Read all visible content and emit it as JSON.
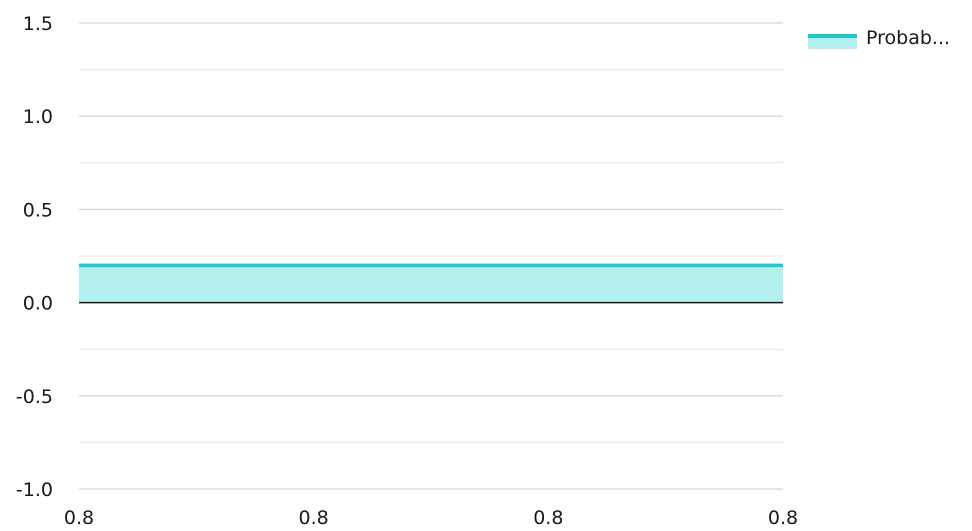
{
  "chart_data": {
    "type": "area",
    "title": "",
    "xlabel": "",
    "ylabel": "",
    "x_tick_labels": [
      "0.8",
      "0.8",
      "0.8",
      "0.8"
    ],
    "ylim": [
      -1.0,
      1.5
    ],
    "y_ticks": [
      1.5,
      1.0,
      0.5,
      0.0,
      -0.5,
      -1.0
    ],
    "y_tick_labels": [
      "1.5",
      "1.0",
      "0.5",
      "0.0",
      "-0.5",
      "-1.0"
    ],
    "grid": true,
    "legend_position": "top-right",
    "series": [
      {
        "name": "Probab...",
        "values": [
          0.2,
          0.2,
          0.2,
          0.2
        ],
        "line_color": "#1ec8cc",
        "fill_color": "#b2efee"
      }
    ]
  }
}
